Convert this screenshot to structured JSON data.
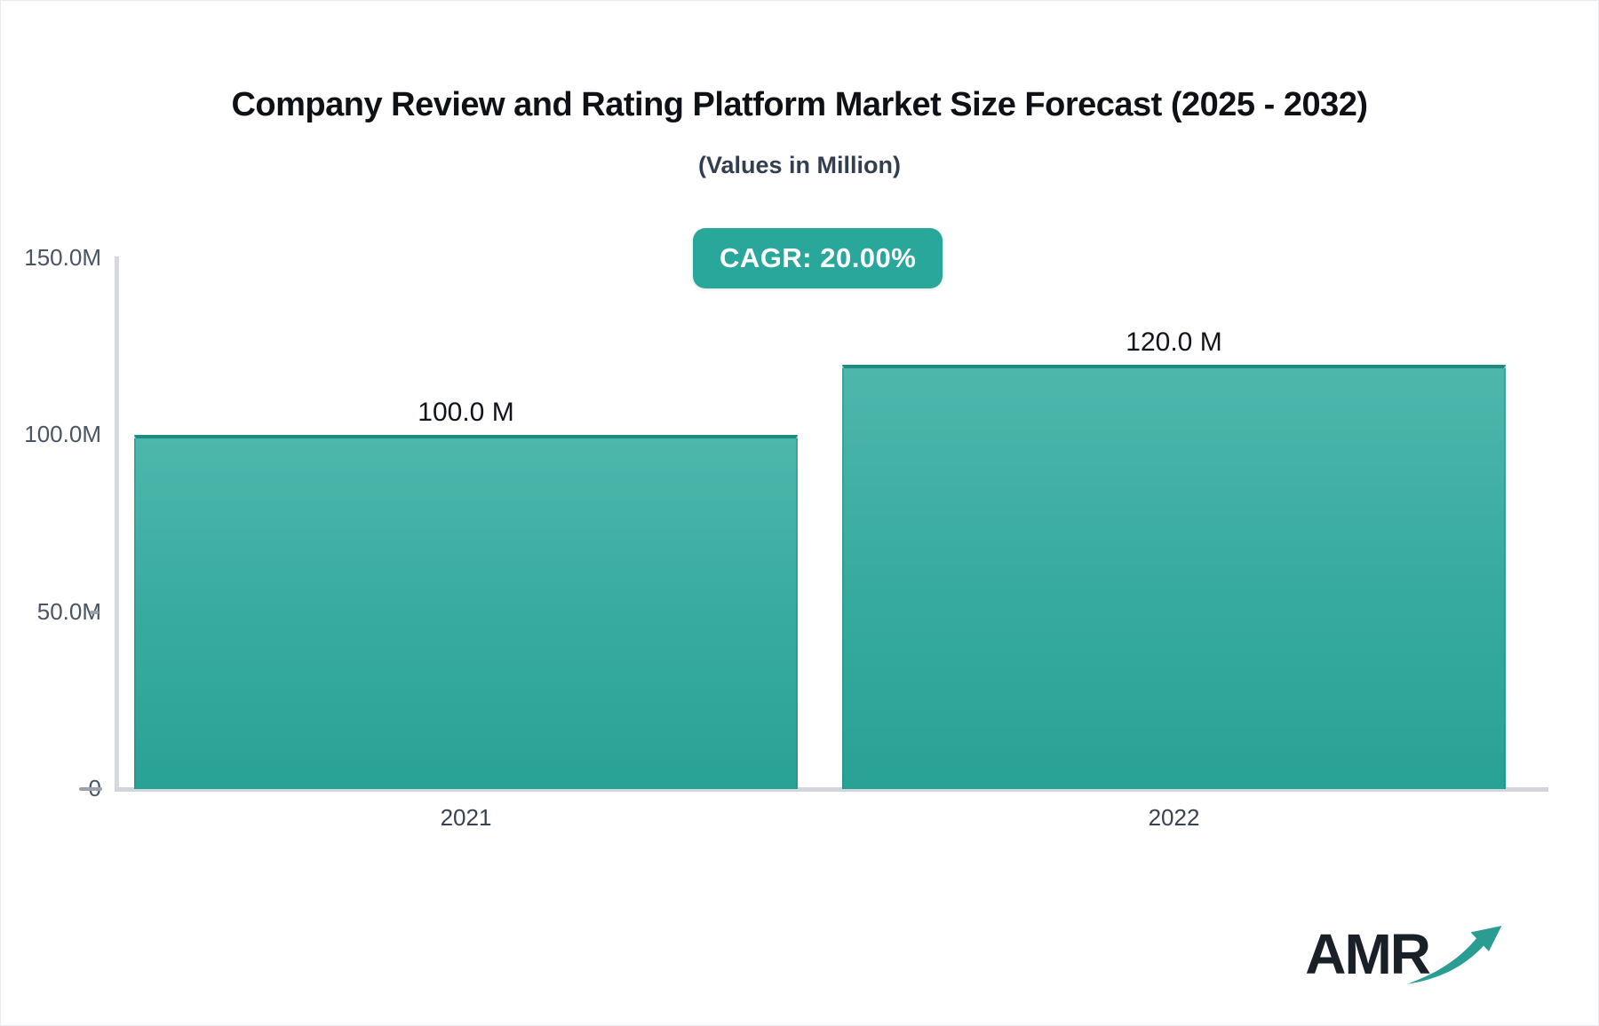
{
  "page": {
    "title": "Company Review and Rating Platform Market Size Forecast (2025 - 2032)",
    "subtitle": "(Values in Million)",
    "cagr_label": "CAGR: 20.00%",
    "logo_text": "AMR"
  },
  "colors": {
    "bar_gradient_top": "#4eb7ac",
    "bar_gradient_bottom": "#28a295",
    "bar_top_border": "#1c8b81",
    "badge_background": "#2aa79b",
    "badge_text": "#ffffff",
    "axis_line": "#d6dade",
    "axis_label": "#4a5564",
    "value_label": "#10151c",
    "title_text": "#0e1217",
    "logo_arrow": "#2b9c91"
  },
  "chart_data": {
    "type": "bar",
    "title": "Company Review and Rating Platform Market Size Forecast (2025 - 2032)",
    "subtitle": "(Values in Million)",
    "cagr": "20.00%",
    "unit": "Million",
    "categories": [
      "2021",
      "2022"
    ],
    "values": [
      100.0,
      120.0
    ],
    "value_labels": [
      "100.0 M",
      "120.0 M"
    ],
    "xlabel": "",
    "ylabel": "",
    "ylim": [
      0,
      150
    ],
    "yticks": [
      {
        "value": 0,
        "label": "0",
        "tick": "long"
      },
      {
        "value": 50,
        "label": "50.0M",
        "tick": "short"
      },
      {
        "value": 100,
        "label": "100.0M",
        "tick": "none"
      },
      {
        "value": 150,
        "label": "150.0M",
        "tick": "none"
      }
    ],
    "grid": false,
    "legend": false,
    "bar_color": "teal-gradient"
  }
}
